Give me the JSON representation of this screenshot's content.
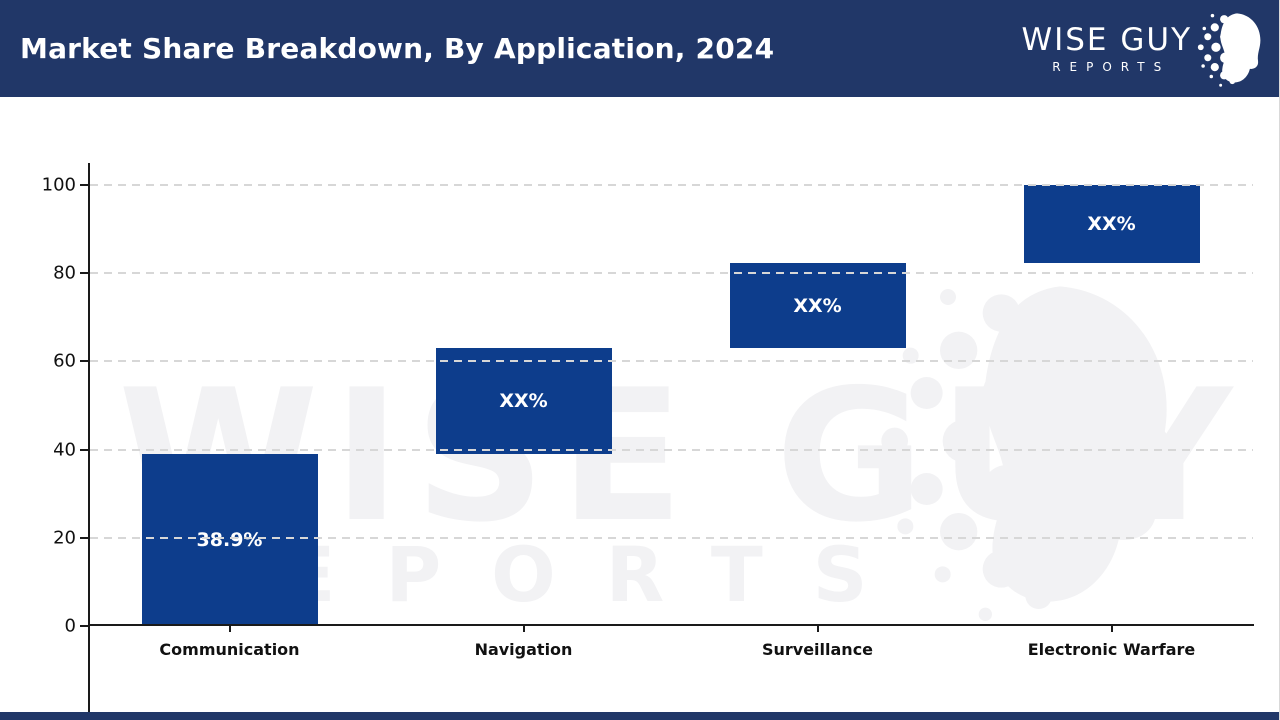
{
  "header": {
    "title": "Market Share Breakdown, By Application, 2024",
    "logo": {
      "line1": "WISE GUY",
      "line2": "REPORTS"
    }
  },
  "watermark": {
    "line1": "WISE GUY",
    "line2": "REPORTS"
  },
  "colors": {
    "header_bg": "#213768",
    "footer_bg": "#213768",
    "bar": "#0d3d8c",
    "bar_label": "#ffffff",
    "grid": "#d7d7d7",
    "axis": "#1a1a1a",
    "watermark": "#f2f2f4"
  },
  "chart_data": {
    "type": "bar",
    "subtype": "floating-breakdown-bars",
    "title": "Market Share Breakdown, By Application, 2024",
    "xlabel": "",
    "ylabel": "",
    "categories": [
      "Communication",
      "Navigation",
      "Surveillance",
      "Electronic Warfare"
    ],
    "bars": [
      {
        "category": "Communication",
        "start": 0,
        "end": 38.9,
        "label": "38.9%"
      },
      {
        "category": "Navigation",
        "start": 39.0,
        "end": 63.0,
        "label": "XX%"
      },
      {
        "category": "Surveillance",
        "start": 63.0,
        "end": 82.3,
        "label": "XX%"
      },
      {
        "category": "Electronic Warfare",
        "start": 82.3,
        "end": 100.0,
        "label": "XX%"
      }
    ],
    "yticks": [
      0,
      20,
      40,
      60,
      80,
      100
    ],
    "ylim": [
      0,
      105
    ],
    "grid": "dashed horizontal, drawn above bars",
    "legend": "none",
    "bar_color": "#0d3d8c"
  }
}
